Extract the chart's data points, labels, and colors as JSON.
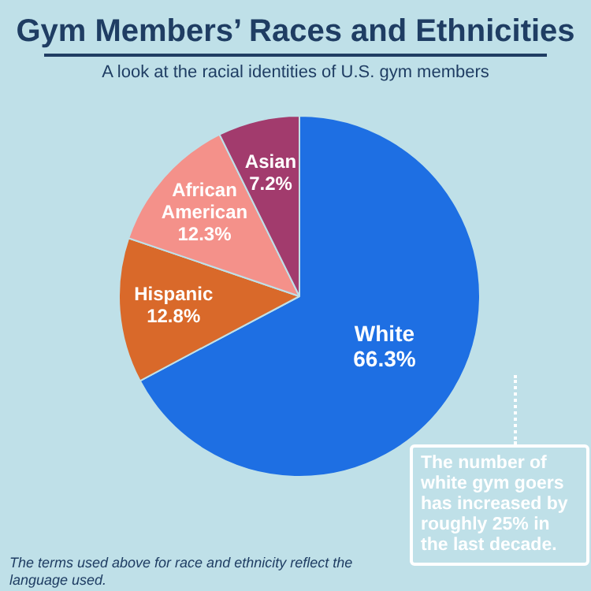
{
  "chart_data": {
    "type": "pie",
    "title": "Gym Members’ Races and Ethnicities",
    "subtitle": "A look at the racial identities of U.S. gym members",
    "categories": [
      "White",
      "Hispanic",
      "African American",
      "Asian"
    ],
    "values": [
      66.3,
      12.8,
      12.3,
      7.2
    ],
    "value_labels": [
      "66.3%",
      "12.8%",
      "12.3%",
      "7.2%"
    ],
    "colors": [
      "#1e6fe3",
      "#d9692a",
      "#f4918a",
      "#a23b6d"
    ],
    "legend": false,
    "annotations": [
      "The number of white gym goers has increased by roughly 25% in the last decade.",
      "The terms used above for race and ethnicity reflect the language used."
    ]
  }
}
